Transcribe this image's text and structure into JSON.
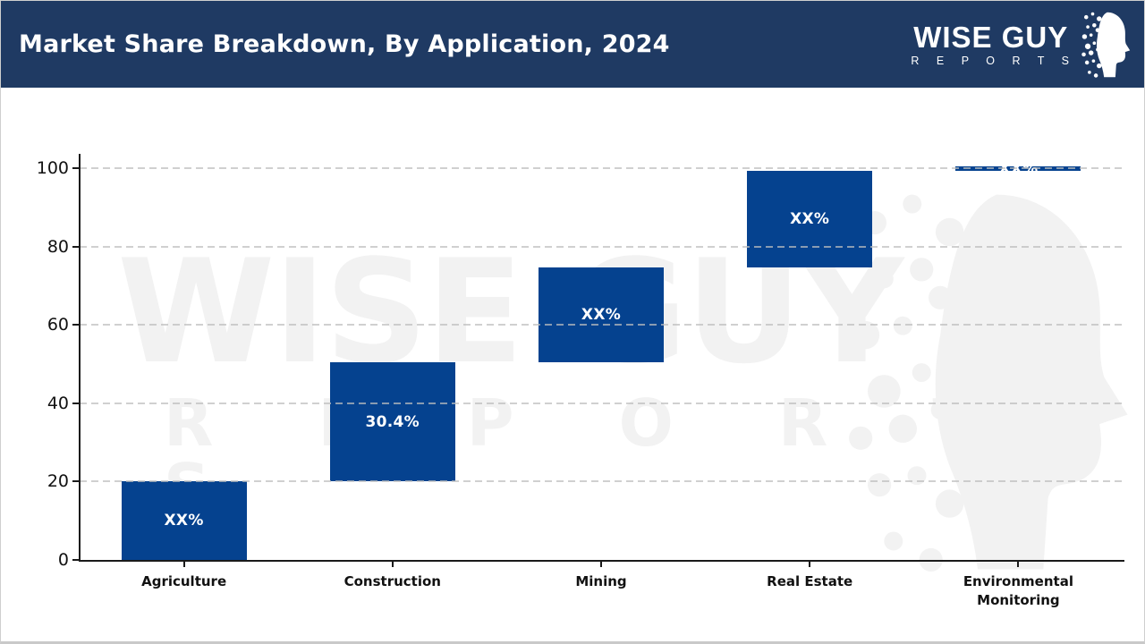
{
  "header": {
    "title": "Market Share Breakdown, By Application, 2024",
    "logo": {
      "line1": "WISE GUY",
      "line2": "R E P O R T S"
    }
  },
  "watermark": {
    "line1": "WISE GUY",
    "line2": "R E P O R T S"
  },
  "colors": {
    "header_bg": "#1f3a63",
    "bar": "#05428f",
    "axis": "#1a1a1a",
    "text": "#111111",
    "grid": "rgba(190,190,190,0.72)",
    "watermark": "#f2f2f2",
    "label": "#ffffff"
  },
  "chart_data": {
    "type": "bar",
    "subtype": "waterfall",
    "title": "Market Share Breakdown, By Application, 2024",
    "xlabel": "",
    "ylabel": "",
    "ylim": [
      0,
      100
    ],
    "yticks": [
      0,
      20,
      40,
      60,
      80,
      100
    ],
    "grid": "dashed-horizontal",
    "legend": "none",
    "categories": [
      "Agriculture",
      "Construction",
      "Mining",
      "Real Estate",
      "Environmental\nMonitoring"
    ],
    "segments": [
      {
        "category": "Agriculture",
        "start": 0,
        "end": 20,
        "label": "XX%"
      },
      {
        "category": "Construction",
        "start": 20,
        "end": 50.4,
        "label": "30.4%"
      },
      {
        "category": "Mining",
        "start": 50.4,
        "end": 74.6,
        "label": "XX%"
      },
      {
        "category": "Real Estate",
        "start": 74.6,
        "end": 99.3,
        "label": "XX%"
      },
      {
        "category": "Environmental Monitoring",
        "start": 99.3,
        "end": 100.4,
        "label": "XX%"
      }
    ]
  }
}
